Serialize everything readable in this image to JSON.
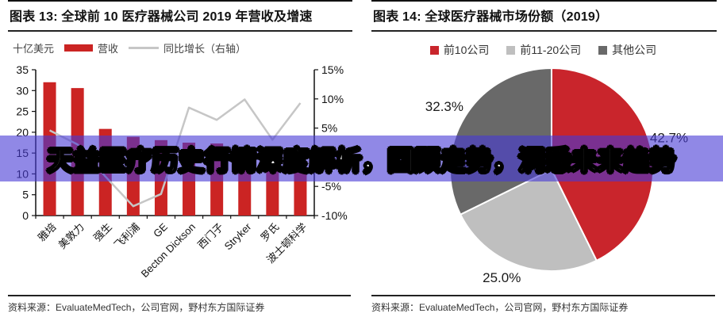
{
  "banner": {
    "text": "天益医疗历史行情深度解析，回顾走势，洞悉未来趋势",
    "overlay_color": "rgba(70,56,213,0.60)"
  },
  "left_panel": {
    "title": "图表 13: 全球前 10 医疗器械公司 2019 年营收及增速",
    "unit_label": "十亿美元",
    "legend_bar_label": "营收",
    "legend_line_label": "同比增长（右轴）",
    "source": "资料来源：EvaluateMedTech，公司官网，野村东方国际证券"
  },
  "right_panel": {
    "title": "图表 14: 全球医疗器械市场份额（2019）",
    "source": "资料来源：EvaluateMedTech，公司官网，野村东方国际证券"
  },
  "chart_data": [
    {
      "type": "bar",
      "title": "全球前 10 医疗器械公司 2019 年营收及增速",
      "categories": [
        "雅培",
        "美敦力",
        "强生",
        "飞利浦",
        "GE",
        "Becton Dickson",
        "西门子",
        "Stryker",
        "罗氏",
        "波士顿科学"
      ],
      "series": [
        {
          "name": "营收",
          "type": "bar",
          "axis": "left",
          "color": "#CB2423",
          "values": [
            32.0,
            30.6,
            20.8,
            18.9,
            18.1,
            17.5,
            17.3,
            14.9,
            13.0,
            10.6
          ]
        },
        {
          "name": "同比增长（右轴）",
          "type": "line",
          "axis": "right",
          "color": "#C6C6C6",
          "values": [
            4.6,
            2.2,
            -3.3,
            -8.4,
            -6.3,
            8.5,
            6.4,
            9.9,
            3.0,
            9.3
          ]
        }
      ],
      "left_axis": {
        "min": 0,
        "max": 35,
        "step": 5,
        "unit": "十亿美元"
      },
      "right_axis": {
        "min": -10,
        "max": 15,
        "step": 5,
        "suffix": "%"
      },
      "grid": false,
      "legend_position": "top"
    },
    {
      "type": "pie",
      "title": "全球医疗器械市场份额（2019）",
      "slices": [
        {
          "label": "前10公司",
          "value": 42.7,
          "label_text": "42.7%",
          "color": "#C9252C"
        },
        {
          "label": "前11-20公司",
          "value": 25.0,
          "label_text": "25.0%",
          "color": "#BFBFBF"
        },
        {
          "label": "其他公司",
          "value": 32.3,
          "label_text": "32.3%",
          "color": "#696969"
        }
      ],
      "start_angle_deg": 0,
      "clockwise": true,
      "legend_position": "top"
    }
  ]
}
